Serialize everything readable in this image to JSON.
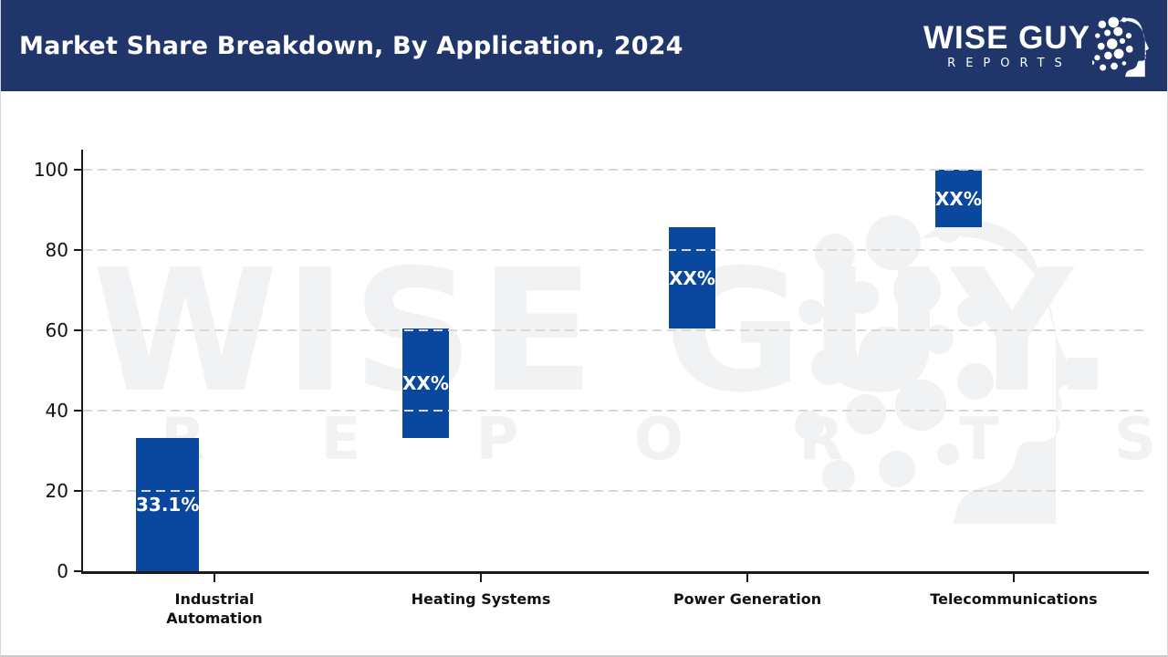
{
  "header": {
    "title": "Market Share Breakdown, By Application, 2024",
    "logo": {
      "brand": "WISE GUY",
      "sub": "REPORTS"
    }
  },
  "watermark": {
    "brand": "WISE GUY.",
    "sub": "R E P O R T S"
  },
  "chart_data": {
    "type": "bar",
    "subtype": "waterfall",
    "title": "Market Share Breakdown, By Application, 2024",
    "categories": [
      "Industrial Automation",
      "Heating Systems",
      "Power Generation",
      "Telecommunications"
    ],
    "tick_lines": [
      [
        "Industrial",
        "Automation"
      ],
      [
        "Heating Systems"
      ],
      [
        "Power Generation"
      ],
      [
        "Telecommunications"
      ]
    ],
    "segments": [
      {
        "category": "Industrial Automation",
        "label": "33.1%",
        "start": 0,
        "end": 33.1
      },
      {
        "category": "Heating Systems",
        "label": "XX%",
        "start": 33.1,
        "end": 60.5
      },
      {
        "category": "Power Generation",
        "label": "XX%",
        "start": 60.5,
        "end": 85.6
      },
      {
        "category": "Telecommunications",
        "label": "XX%",
        "start": 85.6,
        "end": 100
      }
    ],
    "yticks": [
      0,
      20,
      40,
      60,
      80,
      100
    ],
    "ylim": [
      0,
      105
    ],
    "grid": true,
    "grid_style": "dashed",
    "legend": false,
    "bar_color": "#0a479e",
    "bar_label_color": "#ffffff",
    "axis_color": "#1a1a1a",
    "grid_color": "#d8d8d8",
    "header_color": "#20366b",
    "watermark_color": "#f1f2f4",
    "xlabel": "",
    "ylabel": ""
  }
}
